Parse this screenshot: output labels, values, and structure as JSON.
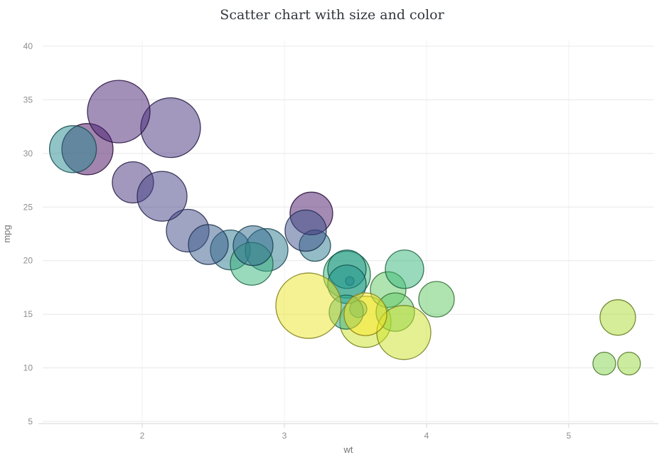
{
  "title": "Scatter chart with size and color",
  "chart_data": {
    "type": "scatter",
    "subtype": "bubble",
    "title": "Scatter chart with size and color",
    "xlabel": "wt",
    "ylabel": "mpg",
    "xlim": [
      1.3,
      5.6
    ],
    "ylim": [
      5,
      40
    ],
    "x_ticks": [
      2,
      3,
      4,
      5
    ],
    "y_ticks": [
      5,
      10,
      15,
      20,
      25,
      30,
      35,
      40
    ],
    "grid": true,
    "legend": "none",
    "fill_opacity": 0.5,
    "points": [
      {
        "x": 2.62,
        "y": 21.0,
        "r": 28,
        "color": "#297a8e"
      },
      {
        "x": 2.875,
        "y": 21.0,
        "r": 30,
        "color": "#297a8e"
      },
      {
        "x": 2.32,
        "y": 22.8,
        "r": 30,
        "color": "#3f4988"
      },
      {
        "x": 3.215,
        "y": 21.4,
        "r": 22,
        "color": "#297a8e"
      },
      {
        "x": 3.44,
        "y": 18.7,
        "r": 33,
        "color": "#35b579"
      },
      {
        "x": 3.46,
        "y": 18.1,
        "r": 6,
        "color": "#34628d"
      },
      {
        "x": 3.57,
        "y": 14.3,
        "r": 36,
        "color": "#cbe126"
      },
      {
        "x": 3.19,
        "y": 24.4,
        "r": 30,
        "color": "#471769"
      },
      {
        "x": 3.15,
        "y": 22.8,
        "r": 29,
        "color": "#3b528a"
      },
      {
        "x": 3.44,
        "y": 19.2,
        "r": 27,
        "color": "#21958b"
      },
      {
        "x": 3.44,
        "y": 17.8,
        "r": 27,
        "color": "#21958b"
      },
      {
        "x": 4.07,
        "y": 16.4,
        "r": 25,
        "color": "#5fc861"
      },
      {
        "x": 3.73,
        "y": 17.3,
        "r": 25,
        "color": "#5fc861"
      },
      {
        "x": 3.78,
        "y": 15.2,
        "r": 27,
        "color": "#5fc861"
      },
      {
        "x": 5.25,
        "y": 10.4,
        "r": 16,
        "color": "#82d34c"
      },
      {
        "x": 5.424,
        "y": 10.4,
        "r": 16,
        "color": "#97d73e"
      },
      {
        "x": 5.345,
        "y": 14.7,
        "r": 25,
        "color": "#acdc31"
      },
      {
        "x": 2.2,
        "y": 32.4,
        "r": 42,
        "color": "#45317c"
      },
      {
        "x": 1.615,
        "y": 30.4,
        "r": 36,
        "color": "#450c5e"
      },
      {
        "x": 1.835,
        "y": 33.9,
        "r": 44,
        "color": "#482273"
      },
      {
        "x": 2.465,
        "y": 21.5,
        "r": 28,
        "color": "#375a8c"
      },
      {
        "x": 3.52,
        "y": 15.5,
        "r": 12,
        "color": "#22a386"
      },
      {
        "x": 3.435,
        "y": 15.2,
        "r": 24,
        "color": "#22a386"
      },
      {
        "x": 3.84,
        "y": 13.3,
        "r": 38,
        "color": "#cbe126"
      },
      {
        "x": 3.845,
        "y": 19.2,
        "r": 27,
        "color": "#35b579"
      },
      {
        "x": 1.935,
        "y": 27.3,
        "r": 29,
        "color": "#45317c"
      },
      {
        "x": 2.14,
        "y": 26.0,
        "r": 35,
        "color": "#424085"
      },
      {
        "x": 1.513,
        "y": 30.4,
        "r": 33,
        "color": "#24898d"
      },
      {
        "x": 3.17,
        "y": 15.8,
        "r": 46,
        "color": "#e9e525"
      },
      {
        "x": 2.77,
        "y": 19.7,
        "r": 30,
        "color": "#35b579"
      },
      {
        "x": 3.57,
        "y": 15.0,
        "r": 30,
        "color": "#fde725"
      },
      {
        "x": 2.78,
        "y": 21.4,
        "r": 28,
        "color": "#306a8d"
      }
    ]
  }
}
